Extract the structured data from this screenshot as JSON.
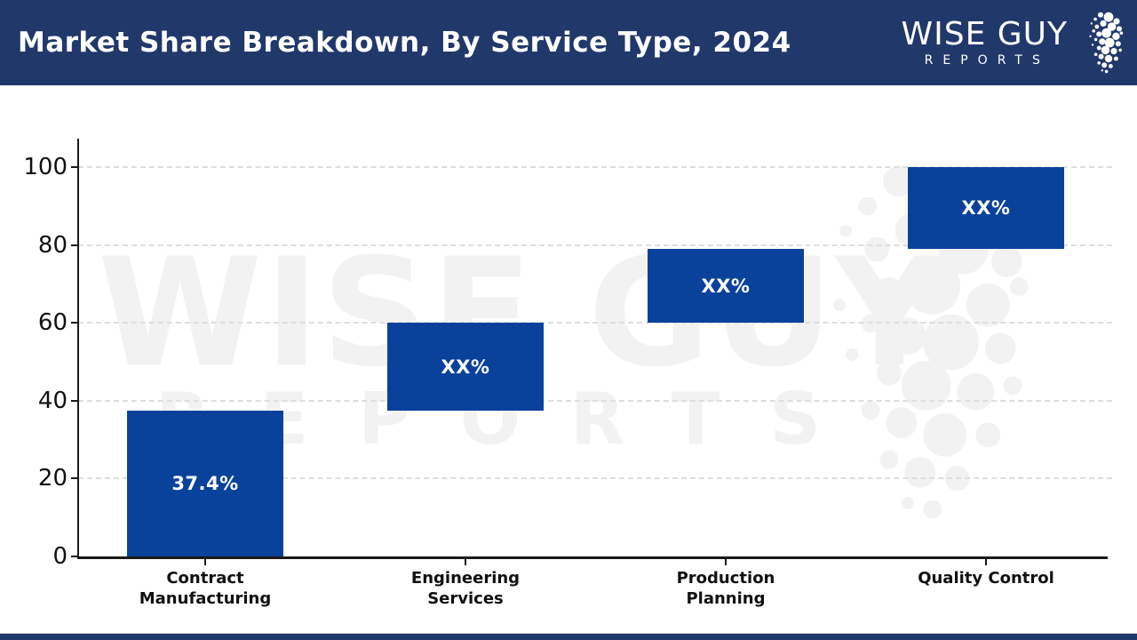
{
  "header": {
    "title": "Market Share Breakdown, By Service Type, 2024",
    "logo": {
      "line1": "WISE GUY",
      "line2": "REPORTS"
    }
  },
  "watermark": {
    "line1": "WISE GUY",
    "line2": "REPORTS"
  },
  "chart_data": {
    "type": "bar",
    "subtype": "waterfall",
    "title": "Market Share Breakdown, By Service Type, 2024",
    "categories": [
      [
        "Contract",
        "Manufacturing"
      ],
      [
        "Engineering",
        "Services"
      ],
      [
        "Production",
        "Planning"
      ],
      [
        "Quality Control"
      ]
    ],
    "segments": [
      {
        "label": "37.4%",
        "start": 0,
        "end": 37.4
      },
      {
        "label": "XX%",
        "start": 37.4,
        "end": 60
      },
      {
        "label": "XX%",
        "start": 60,
        "end": 79
      },
      {
        "label": "XX%",
        "start": 79,
        "end": 100
      }
    ],
    "y_ticks": [
      0,
      20,
      40,
      60,
      80,
      100
    ],
    "ylim": [
      0,
      105
    ],
    "xlabel": "",
    "ylabel": "",
    "grid": "horizontal-dashed",
    "legend": "none",
    "bar_color": "#0a429b",
    "value_label_color": "#ffffff"
  },
  "colors": {
    "header_bg": "#21386b",
    "footer_bg": "#21386b",
    "bar": "#0a429b",
    "grid": "#dedede",
    "axis": "#1a1a1a",
    "watermark": "#f2f2f2"
  }
}
